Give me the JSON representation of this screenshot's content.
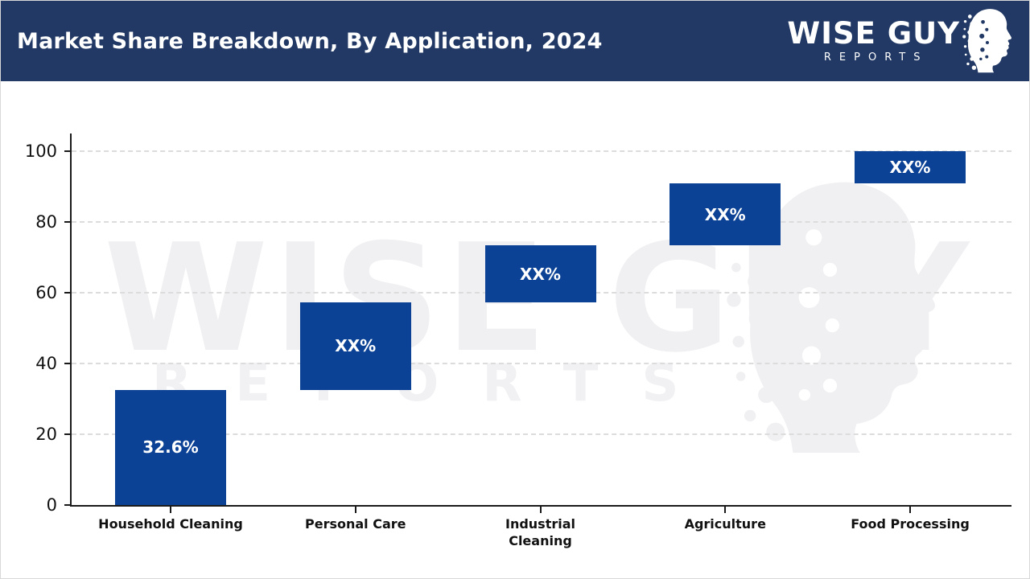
{
  "header": {
    "title": "Market Share Breakdown, By Application, 2024",
    "bg_color": "#213964",
    "logo": {
      "line1": "WISE GUY",
      "line2": "REPORTS"
    }
  },
  "watermark": {
    "line1": "WISE GUY",
    "line2": "REPORTS"
  },
  "chart_data": {
    "type": "bar",
    "subtype": "waterfall",
    "title": "Market Share Breakdown, By Application, 2024",
    "categories": [
      "Household Cleaning",
      "Personal Care",
      "Industrial Cleaning",
      "Agriculture",
      "Food Processing"
    ],
    "x_labels": [
      "Household Cleaning",
      "Personal Care",
      "Industrial\nCleaning",
      "Agriculture",
      "Food Processing"
    ],
    "segments": [
      {
        "category": "Household Cleaning",
        "start": 0,
        "end": 32.6,
        "value": 32.6,
        "label": "32.6%"
      },
      {
        "category": "Personal Care",
        "start": 32.6,
        "end": 57.2,
        "value": 24.6,
        "label": "XX%"
      },
      {
        "category": "Industrial Cleaning",
        "start": 57.2,
        "end": 73.4,
        "value": 16.2,
        "label": "XX%"
      },
      {
        "category": "Agriculture",
        "start": 73.4,
        "end": 90.9,
        "value": 17.5,
        "label": "XX%"
      },
      {
        "category": "Food Processing",
        "start": 90.9,
        "end": 100,
        "value": 9.1,
        "label": "XX%"
      }
    ],
    "y_ticks": [
      0,
      20,
      40,
      60,
      80,
      100
    ],
    "ylim": [
      0,
      105
    ],
    "grid": "horizontal-dashed",
    "legend": "none",
    "bar_color": "#0b4295",
    "bar_label_color": "#ffffff",
    "axis_color": "#1a1a1a",
    "gridline_color": "#dcdcdc"
  }
}
